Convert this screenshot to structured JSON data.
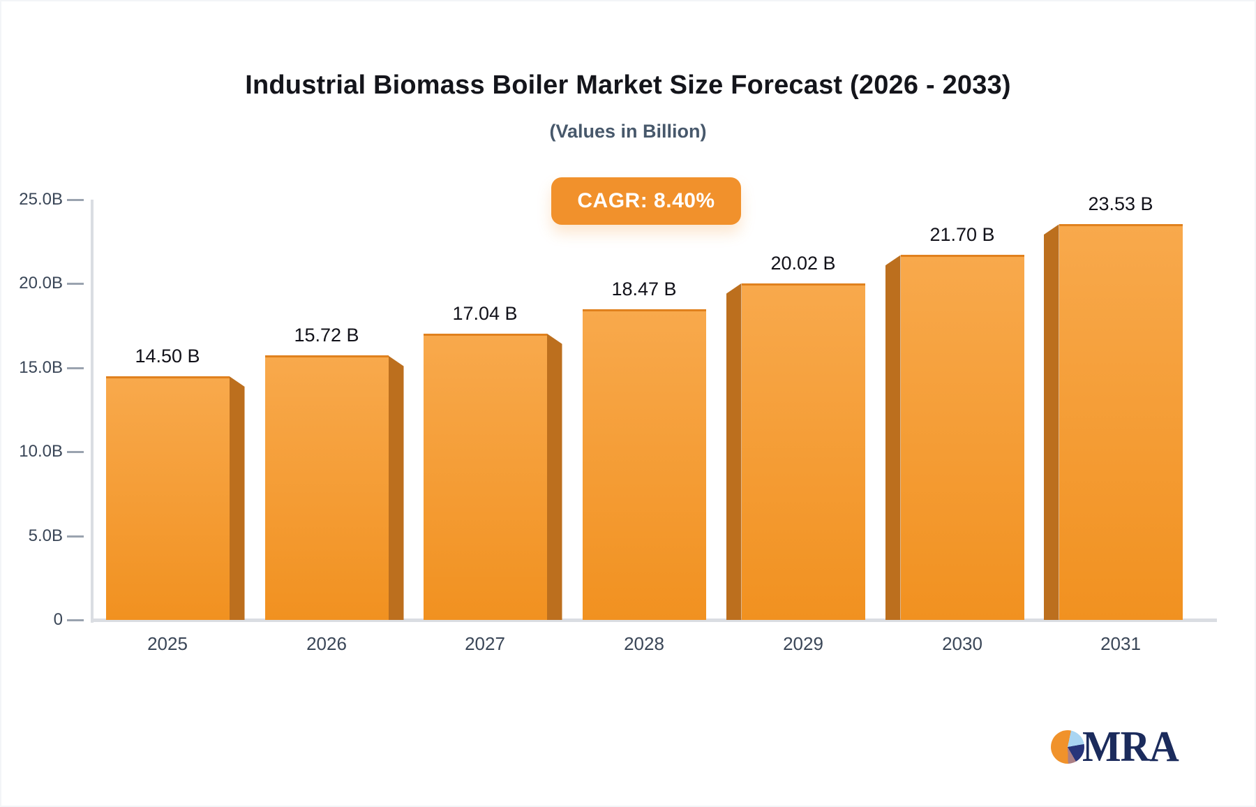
{
  "header": {
    "title": "Industrial Biomass Boiler Market Size Forecast (2026 - 2033)",
    "subtitle": "(Values in Billion)"
  },
  "badge": {
    "label": "CAGR: 8.40%",
    "bg": "#F1912C",
    "text_color": "#FFFFFF"
  },
  "chart_data": {
    "type": "bar",
    "title": "Industrial Biomass Boiler Market Size Forecast (2026 - 2033)",
    "subtitle": "(Values in Billion)",
    "cagr_label": "CAGR: 8.40%",
    "categories": [
      "2025",
      "2026",
      "2027",
      "2028",
      "2029",
      "2030",
      "2031"
    ],
    "values": [
      14.5,
      15.72,
      17.04,
      18.47,
      20.02,
      21.7,
      23.53
    ],
    "value_labels": [
      "14.50 B",
      "15.72 B",
      "17.04 B",
      "18.47 B",
      "20.02 B",
      "21.70 B",
      "23.53 B"
    ],
    "unit": "Billion",
    "xlabel": "",
    "ylabel": "",
    "ylim": [
      0,
      25
    ],
    "yticks": [
      {
        "value": 0,
        "label": "0"
      },
      {
        "value": 5,
        "label": "5.0B"
      },
      {
        "value": 10,
        "label": "10.0B"
      },
      {
        "value": 15,
        "label": "15.0B"
      },
      {
        "value": 20,
        "label": "20.0B"
      },
      {
        "value": 25,
        "label": "25.0B"
      }
    ],
    "grid": false,
    "legend": null,
    "bar_style": "pseudo-3d",
    "colors": {
      "bar_face_top": "#F8A94C",
      "bar_face_bottom": "#F19120",
      "bar_top_edge": "#E0811E",
      "bar_side": "#BC6F1E",
      "axis_line": "#DADDE2",
      "tick": "#9AA3AF",
      "axis_label": "#3A4657",
      "value_label": "#111119"
    }
  },
  "logo": {
    "text": "MRA",
    "text_color": "#1B2B5C",
    "pie_colors": {
      "orange": "#F0922B",
      "light_blue": "#A9D5F2",
      "navy": "#27357A",
      "mauve": "#AB7F85"
    }
  }
}
